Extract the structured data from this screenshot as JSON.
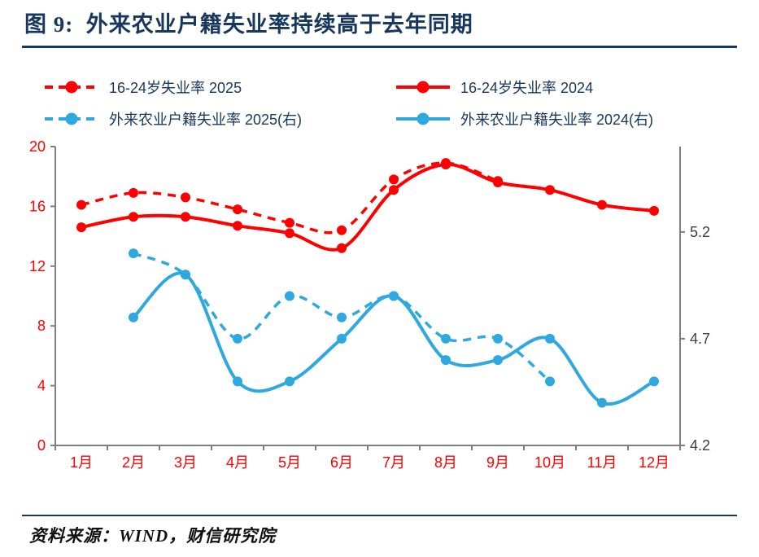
{
  "header": {
    "title": "图 9:  外来农业户籍失业率持续高于去年同期"
  },
  "footer": {
    "source": "资料来源：WIND，财信研究院"
  },
  "colors": {
    "navy": "#17375E",
    "axis_line": "#7F7F7F",
    "left_label": "#FF0000",
    "bottom_label": "#FF0000",
    "right_label": "#404040"
  },
  "chart_data": {
    "type": "line",
    "title": "外来农业户籍失业率持续高于去年同期",
    "categories": [
      "1月",
      "2月",
      "3月",
      "4月",
      "5月",
      "6月",
      "7月",
      "8月",
      "9月",
      "10月",
      "11月",
      "12月"
    ],
    "left_axis": {
      "min": 0,
      "max": 20,
      "ticks": [
        0,
        4,
        8,
        12,
        16,
        20
      ]
    },
    "right_axis": {
      "min": 4.2,
      "max": 5.6,
      "ticks": [
        4.2,
        4.7,
        5.2
      ]
    },
    "grid": false,
    "legend_position": "top",
    "series": [
      {
        "name": "16-24岁失业率 2025",
        "axis": "left",
        "style": "dashed",
        "color": "#FF0000",
        "start_month": 1,
        "values": [
          16.1,
          16.9,
          16.6,
          15.8,
          14.9,
          14.4,
          17.8,
          18.9,
          17.7
        ]
      },
      {
        "name": "16-24岁失业率 2024",
        "axis": "left",
        "style": "solid",
        "color": "#FF0000",
        "start_month": 1,
        "values": [
          14.6,
          15.3,
          15.3,
          14.7,
          14.2,
          13.2,
          17.1,
          18.8,
          17.6,
          17.1,
          16.1,
          15.7
        ]
      },
      {
        "name": "外来农业户籍失业率 2025(右)",
        "axis": "right",
        "style": "dashed",
        "color": "#2EA8DF",
        "start_month": 2,
        "values": [
          5.1,
          5.0,
          4.7,
          4.9,
          4.8,
          4.9,
          4.7,
          4.7,
          4.5
        ]
      },
      {
        "name": "外来农业户籍失业率 2024(右)",
        "axis": "right",
        "style": "solid",
        "color": "#2EA8DF",
        "start_month": 2,
        "values": [
          4.8,
          5.0,
          4.5,
          4.5,
          4.7,
          4.9,
          4.6,
          4.6,
          4.7,
          4.4,
          4.5
        ]
      }
    ]
  }
}
